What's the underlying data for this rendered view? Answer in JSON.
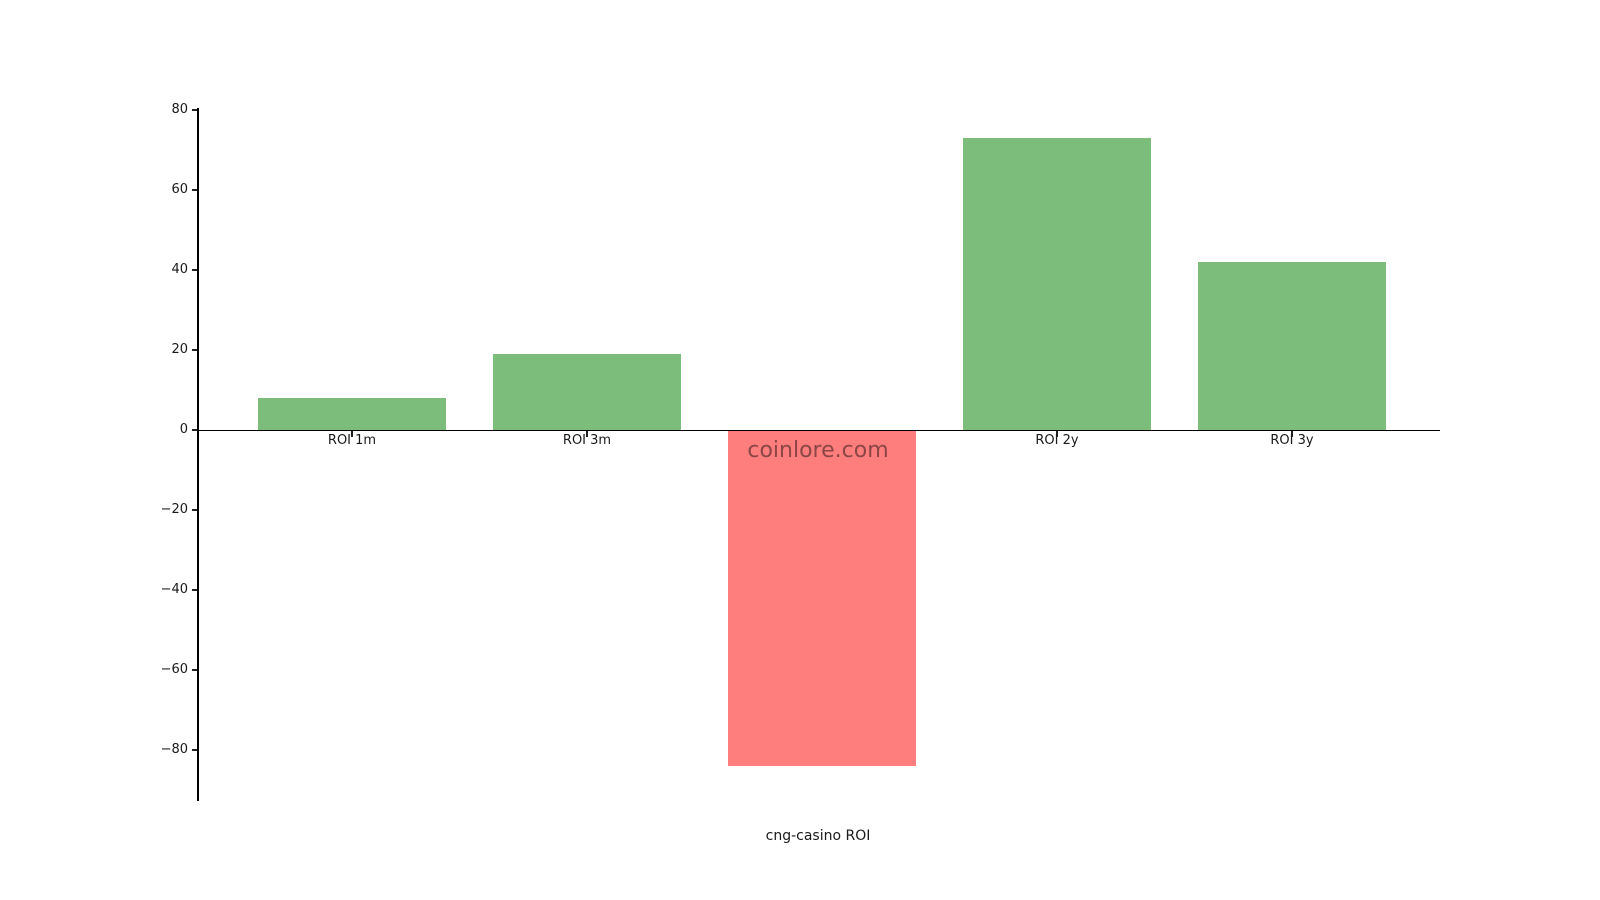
{
  "page": {
    "background_color": "#ffffff"
  },
  "watermark": {
    "text": "coinlore.com",
    "color": "#8c4646"
  },
  "chart_data": {
    "type": "bar",
    "title": "cng-casino ROI",
    "xlabel": "cng-casino ROI",
    "ylabel": "",
    "categories": [
      "ROI 1m",
      "ROI 3m",
      "",
      "ROI 2y",
      "ROI 3y"
    ],
    "values": [
      8,
      19,
      -84,
      73,
      42
    ],
    "bar_colors": [
      "#7dbd7b",
      "#7dbd7b",
      "#fe7d7d",
      "#7dbd7b",
      "#7dbd7b"
    ],
    "positive_color": "#7dbd7b",
    "negative_color": "#fe7d7d",
    "y_ticks": [
      80,
      60,
      40,
      20,
      0,
      -20,
      -40,
      -60,
      -80
    ],
    "y_tick_labels": [
      "80",
      "60",
      "40",
      "20",
      "0",
      "−20",
      "−40",
      "−60",
      "−80"
    ],
    "ylim": [
      -92.75,
      80.5
    ],
    "grid": false,
    "legend": null,
    "axis_color": "#000000",
    "tick_text_color": "#1a1a1a",
    "note_middle_label_hidden_behind_bar": true
  }
}
